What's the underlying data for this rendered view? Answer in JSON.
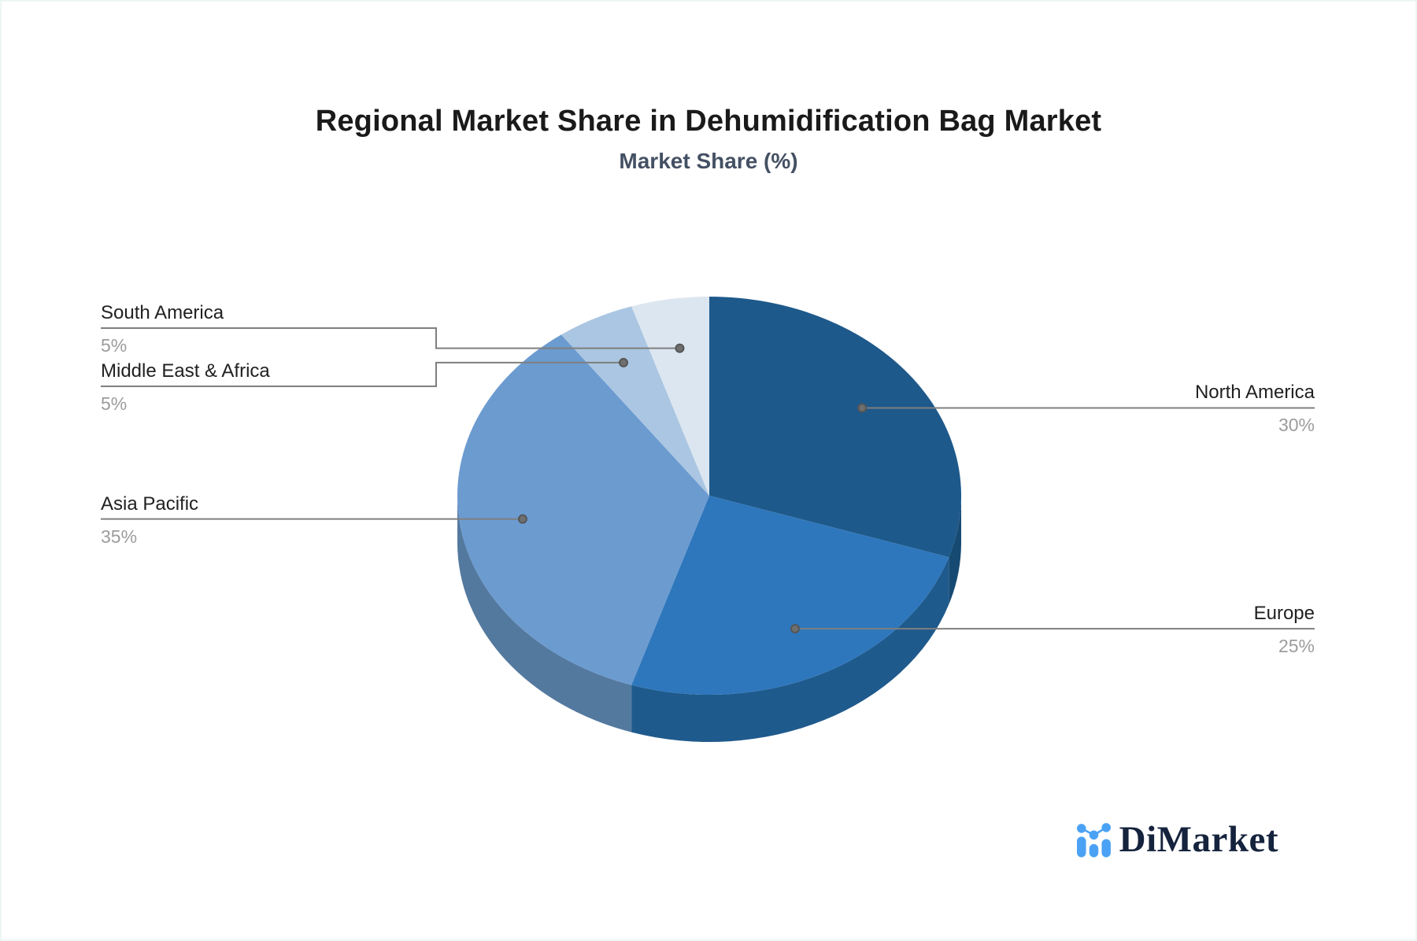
{
  "header": {
    "title": "Regional Market Share in Dehumidification Bag Market",
    "subtitle": "Market Share (%)"
  },
  "chart_data": {
    "type": "pie",
    "title": "Regional Market Share in Dehumidification Bag Market",
    "subtitle": "Market Share (%)",
    "unit": "%",
    "effect": "3d-depth",
    "start_angle_deg": 0,
    "direction": "clockwise",
    "legend": "none",
    "label_style": "external-callout",
    "slices": [
      {
        "label": "North America",
        "value": 30,
        "display": "30%",
        "color": "#1E598B",
        "side_color": "#174A72"
      },
      {
        "label": "Europe",
        "value": 25,
        "display": "25%",
        "color": "#2E77BC",
        "side_color": "#1F5A8D"
      },
      {
        "label": "Asia Pacific",
        "value": 35,
        "display": "35%",
        "color": "#6C9BD0",
        "side_color": "#54799F"
      },
      {
        "label": "Middle East & Africa",
        "value": 5,
        "display": "5%",
        "color": "#AAC6E2",
        "side_color": "#8FB2D4"
      },
      {
        "label": "South America",
        "value": 5,
        "display": "5%",
        "color": "#DCE6F0",
        "side_color": "#BFD0E2"
      }
    ]
  },
  "callout_style": {
    "line_color": "#7F7F7F",
    "dot_fill": "#6F6F6F",
    "dot_stroke": "#565656",
    "label_text_color": "#212121",
    "value_text_color": "#9C9C9C"
  },
  "logo": {
    "text": "DiMarket",
    "icon": "mini-bar-chart-icon",
    "icon_color": "#4BA2F5",
    "text_color": "#15233D"
  }
}
